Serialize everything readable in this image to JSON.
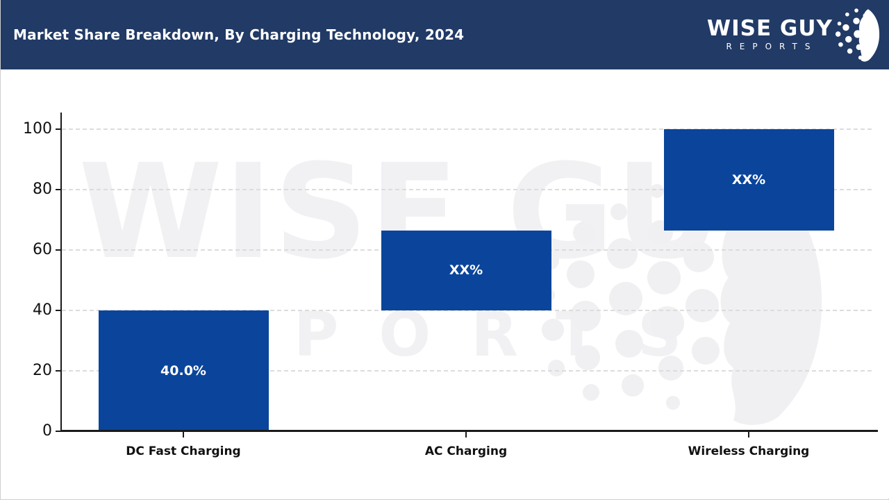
{
  "header": {
    "title": "Market Share Breakdown, By Charging Technology, 2024",
    "logo": {
      "wordmark": "WISE GUY",
      "subtext": "REPORTS"
    }
  },
  "watermark": {
    "line1": "WISE GUY",
    "line2": "REPORTS"
  },
  "chart_data": {
    "type": "bar",
    "subtype": "floating-segment-waterfall",
    "title": "Market Share Breakdown, By Charging Technology, 2024",
    "categories": [
      "DC Fast Charging",
      "AC Charging",
      "Wireless Charging"
    ],
    "segments": [
      {
        "category": "DC Fast Charging",
        "start": 0,
        "end": 40,
        "label": "40.0%"
      },
      {
        "category": "AC Charging",
        "start": 40,
        "end": 66.5,
        "label": "XX%"
      },
      {
        "category": "Wireless Charging",
        "start": 66.5,
        "end": 100,
        "label": "XX%"
      }
    ],
    "values_visible": [
      "40.0%",
      "XX%",
      "XX%"
    ],
    "yticks": [
      0,
      20,
      40,
      60,
      80,
      100
    ],
    "ylim": [
      0,
      100
    ],
    "xlabel": "",
    "ylabel": "",
    "grid": "horizontal-dashed",
    "legend": "none",
    "bar_color": "#0a459b",
    "bar_label_color": "#ffffff",
    "axis_color": "#1a1a1a"
  },
  "colors": {
    "header_bg": "#213a66",
    "bar": "#0a459b",
    "gridline": "#dcdcdc",
    "watermark": "#f1f1f4",
    "page_border": "#cfcfcf"
  }
}
